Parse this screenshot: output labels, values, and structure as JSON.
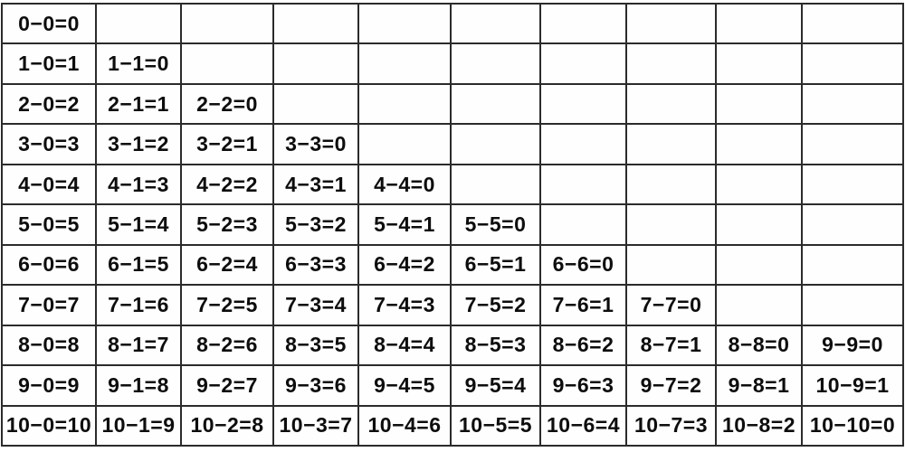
{
  "document": {
    "kind": "subtraction-facts-table",
    "rows_count": 11,
    "cols_count": 10
  },
  "colors": {
    "border": "#2b2b2b",
    "text": "#0d0d0d",
    "cell_background": "#fefefe"
  },
  "grid": {
    "rows": [
      {
        "cells": [
          "0−0=0",
          "",
          "",
          "",
          "",
          "",
          "",
          "",
          "",
          ""
        ]
      },
      {
        "cells": [
          "1−0=1",
          "1−1=0",
          "",
          "",
          "",
          "",
          "",
          "",
          "",
          ""
        ]
      },
      {
        "cells": [
          "2−0=2",
          "2−1=1",
          "2−2=0",
          "",
          "",
          "",
          "",
          "",
          "",
          ""
        ]
      },
      {
        "cells": [
          "3−0=3",
          "3−1=2",
          "3−2=1",
          "3−3=0",
          "",
          "",
          "",
          "",
          "",
          ""
        ]
      },
      {
        "cells": [
          "4−0=4",
          "4−1=3",
          "4−2=2",
          "4−3=1",
          "4−4=0",
          "",
          "",
          "",
          "",
          ""
        ]
      },
      {
        "cells": [
          "5−0=5",
          "5−1=4",
          "5−2=3",
          "5−3=2",
          "5−4=1",
          "5−5=0",
          "",
          "",
          "",
          ""
        ]
      },
      {
        "cells": [
          "6−0=6",
          "6−1=5",
          "6−2=4",
          "6−3=3",
          "6−4=2",
          "6−5=1",
          "6−6=0",
          "",
          "",
          ""
        ]
      },
      {
        "cells": [
          "7−0=7",
          "7−1=6",
          "7−2=5",
          "7−3=4",
          "7−4=3",
          "7−5=2",
          "7−6=1",
          "7−7=0",
          "",
          ""
        ]
      },
      {
        "cells": [
          "8−0=8",
          "8−1=7",
          "8−2=6",
          "8−3=5",
          "8−4=4",
          "8−5=3",
          "8−6=2",
          "8−7=1",
          "8−8=0",
          "9−9=0"
        ]
      },
      {
        "cells": [
          "9−0=9",
          "9−1=8",
          "9−2=7",
          "9−3=6",
          "9−4=5",
          "9−5=4",
          "9−6=3",
          "9−7=2",
          "9−8=1",
          "10−9=1"
        ]
      },
      {
        "cells": [
          "10−0=10",
          "10−1=9",
          "10−2=8",
          "10−3=7",
          "10−4=6",
          "10−5=5",
          "10−6=4",
          "10−7=3",
          "10−8=2",
          "10−10=0"
        ]
      }
    ]
  }
}
